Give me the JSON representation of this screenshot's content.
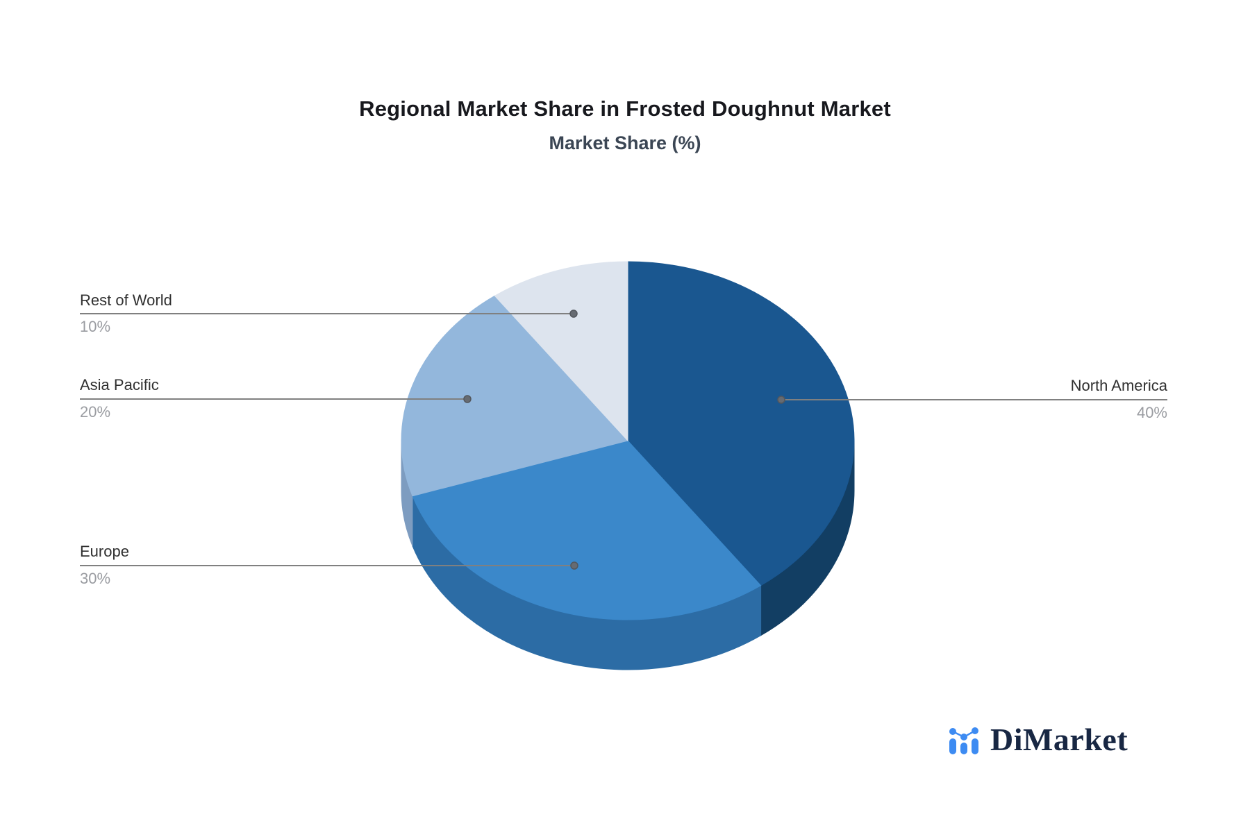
{
  "page": {
    "background": "#ffffff"
  },
  "header": {
    "title": "Regional Market Share in Frosted Doughnut Market",
    "subtitle": "Market Share (%)"
  },
  "chart_data": {
    "type": "pie",
    "title": "Regional Market Share in Frosted Doughnut Market",
    "subtitle": "Market Share (%)",
    "unit": "%",
    "style": "3d",
    "start_angle_deg": 0,
    "direction": "clockwise",
    "legend": "none",
    "labels": "callout",
    "slices": [
      {
        "label": "North America",
        "value": 40,
        "display": "40%",
        "color": "#1a5790",
        "side_color": "#123e63",
        "callout_side": "right"
      },
      {
        "label": "Europe",
        "value": 30,
        "display": "30%",
        "color": "#3b88ca",
        "side_color": "#2c6ca5",
        "callout_side": "left"
      },
      {
        "label": "Asia Pacific",
        "value": 20,
        "display": "20%",
        "color": "#93b7dc",
        "side_color": "#7d9cc0",
        "callout_side": "left"
      },
      {
        "label": "Rest of World",
        "value": 10,
        "display": "10%",
        "color": "#dde4ee",
        "side_color": "#c3cdda",
        "callout_side": "left"
      }
    ],
    "colors": {
      "leader_line": "#808080",
      "leader_dot": "#666b72",
      "label_text": "#303030",
      "value_text": "#9a9ca1"
    }
  },
  "branding": {
    "name": "DiMarket",
    "icon": "bar-chart-trend-logo-icon",
    "text_color": "#182743",
    "icon_color": "#3d8bf2"
  }
}
